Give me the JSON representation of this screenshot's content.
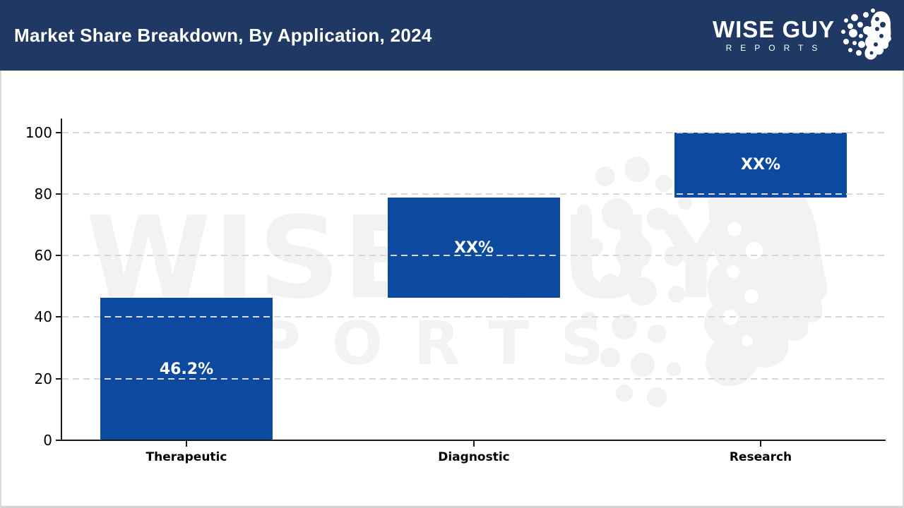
{
  "header": {
    "title": "Market Share Breakdown, By Application, 2024",
    "logo": {
      "line1": "WISE GUY",
      "line2": "REPORTS"
    }
  },
  "watermark": {
    "line1": "WISE GUY",
    "line2": "REPORTS"
  },
  "colors": {
    "header_bg": "#1f3864",
    "bar": "#0b4a9e",
    "bar_label_text": "#ffffff",
    "title_text": "#ffffff",
    "gridline": "#d8d8d8",
    "axis": "#1a1a1a",
    "watermark": "#f2f2f2",
    "border": "#d9d9d9"
  },
  "chart_data": {
    "type": "bar",
    "variant": "floating-stacked-waterfall",
    "title": "Market Share Breakdown, By Application, 2024",
    "categories": [
      "Therapeutic",
      "Diagnostic",
      "Research"
    ],
    "bars": [
      {
        "category": "Therapeutic",
        "start": 0,
        "end": 46.2,
        "label": "46.2%"
      },
      {
        "category": "Diagnostic",
        "start": 46.2,
        "end": 78.7,
        "label": "XX%"
      },
      {
        "category": "Research",
        "start": 78.7,
        "end": 100,
        "label": "XX%"
      }
    ],
    "xlabel": "",
    "ylabel": "",
    "ylim": [
      0,
      100
    ],
    "yticks": [
      0,
      20,
      40,
      60,
      80,
      100
    ],
    "grid": "horizontal-dashed",
    "legend": "none"
  }
}
